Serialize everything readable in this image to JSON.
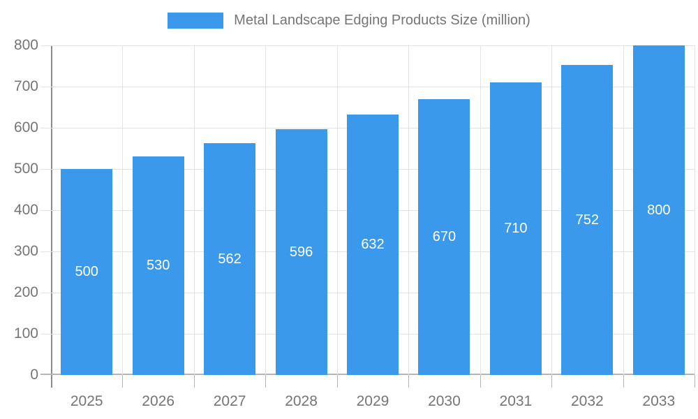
{
  "chart_data": {
    "type": "bar",
    "title": "Metal Landscape Edging Products Size (million)",
    "legend_position": "top-center",
    "categories": [
      "2025",
      "2026",
      "2027",
      "2028",
      "2029",
      "2030",
      "2031",
      "2032",
      "2033"
    ],
    "values": [
      500,
      530,
      562,
      596,
      632,
      670,
      710,
      752,
      800
    ],
    "xlabel": "",
    "ylabel": "",
    "ylim": [
      0,
      800
    ],
    "y_ticks": [
      0,
      100,
      200,
      300,
      400,
      500,
      600,
      700,
      800
    ],
    "grid": true,
    "bar_labels_inside": true
  },
  "colors": {
    "bar": "#3b99ec",
    "bar_label_text": "#ffffff",
    "axis_text": "#757575",
    "gridline": "#e3e3e3",
    "axis_line": "#8a8a8a",
    "baseline": "#b5b5b5"
  }
}
